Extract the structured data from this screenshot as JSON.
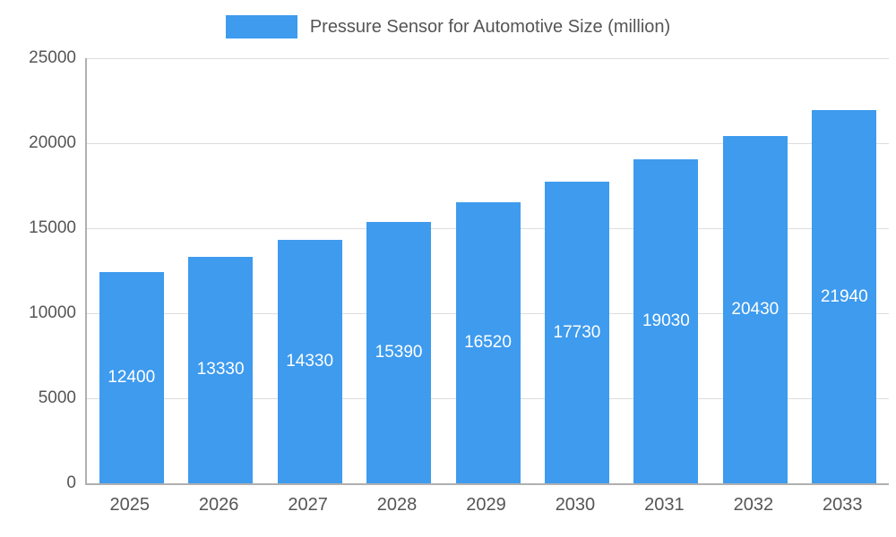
{
  "legend": {
    "label": "Pressure Sensor for Automotive Size (million)",
    "swatch_color": "#3e9bee"
  },
  "chart_data": {
    "type": "bar",
    "title": "Pressure Sensor for Automotive Size (million)",
    "categories": [
      "2025",
      "2026",
      "2027",
      "2028",
      "2029",
      "2030",
      "2031",
      "2032",
      "2033"
    ],
    "values": [
      12400,
      13330,
      14330,
      15390,
      16520,
      17730,
      19030,
      20430,
      21940
    ],
    "xlabel": "",
    "ylabel": "",
    "ylim": [
      0,
      25000
    ],
    "yticks": [
      0,
      5000,
      10000,
      15000,
      20000,
      25000
    ],
    "grid": true,
    "legend_position": "top-center",
    "bar_color": "#3e9bee",
    "value_label_color": "#ffffff",
    "axis_text_color": "#555555",
    "gridline_color": "#dddddd",
    "axis_line_color": "#b0b0b0"
  }
}
